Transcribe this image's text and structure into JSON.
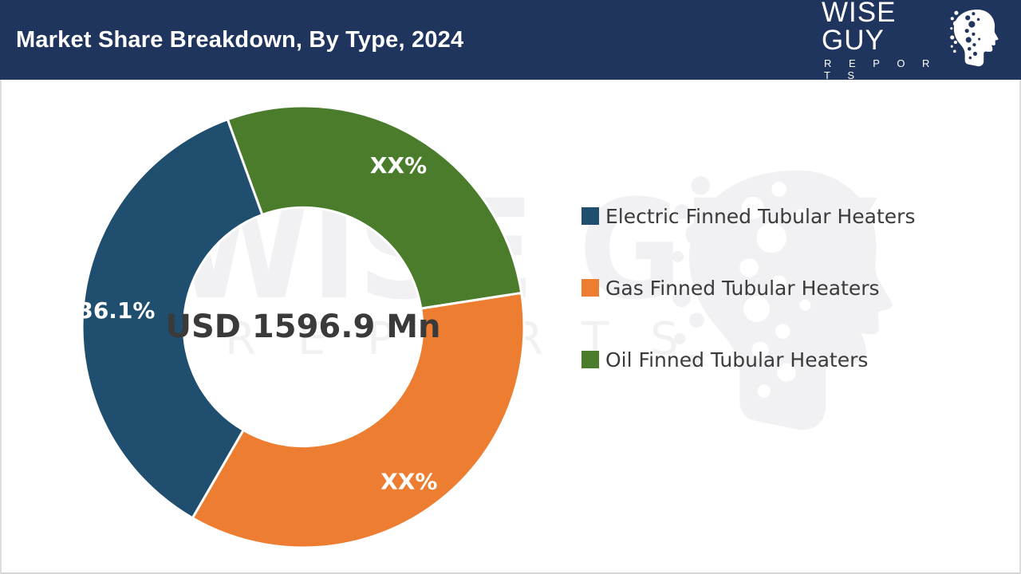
{
  "header": {
    "title": "Market Share Breakdown, By Type, 2024",
    "logo": {
      "line1": "WISE GUY",
      "line2": "R E P O R T S"
    }
  },
  "watermark": {
    "line1": "WISE GUY",
    "line2": "REPORTS"
  },
  "chart_data": {
    "type": "pie",
    "subtype": "donut",
    "title": "Market Share Breakdown, By Type, 2024",
    "center_label": "USD 1596.9 Mn",
    "start_angle_deg": -20,
    "direction": "clockwise",
    "inner_radius_ratio": 0.54,
    "segments": [
      {
        "name": "Oil Finned Tubular Heaters",
        "label": "XX%",
        "share_pct_est": 28.1,
        "color": "#4A7C2B"
      },
      {
        "name": "Gas Finned Tubular Heaters",
        "label": "XX%",
        "share_pct_est": 35.8,
        "color": "#ED7D31"
      },
      {
        "name": "Electric Finned Tubular Heaters",
        "label": "36.1%",
        "share_pct_est": 36.1,
        "color": "#1F4E6F"
      }
    ],
    "legend": [
      {
        "label": "Electric Finned Tubular Heaters",
        "color": "#1F4E6F"
      },
      {
        "label": "Gas Finned Tubular Heaters",
        "color": "#ED7D31"
      },
      {
        "label": "Oil Finned Tubular Heaters",
        "color": "#4A7C2B"
      }
    ],
    "legend_position": "right"
  },
  "colors": {
    "header_bg": "#20355E",
    "blue": "#1F4E6F",
    "orange": "#ED7D31",
    "green": "#4A7C2B",
    "text_dark": "#3A3A3A",
    "watermark": "#F1F1F4",
    "border": "#DCDCDC",
    "slice_gap": "#FFFFFF"
  }
}
